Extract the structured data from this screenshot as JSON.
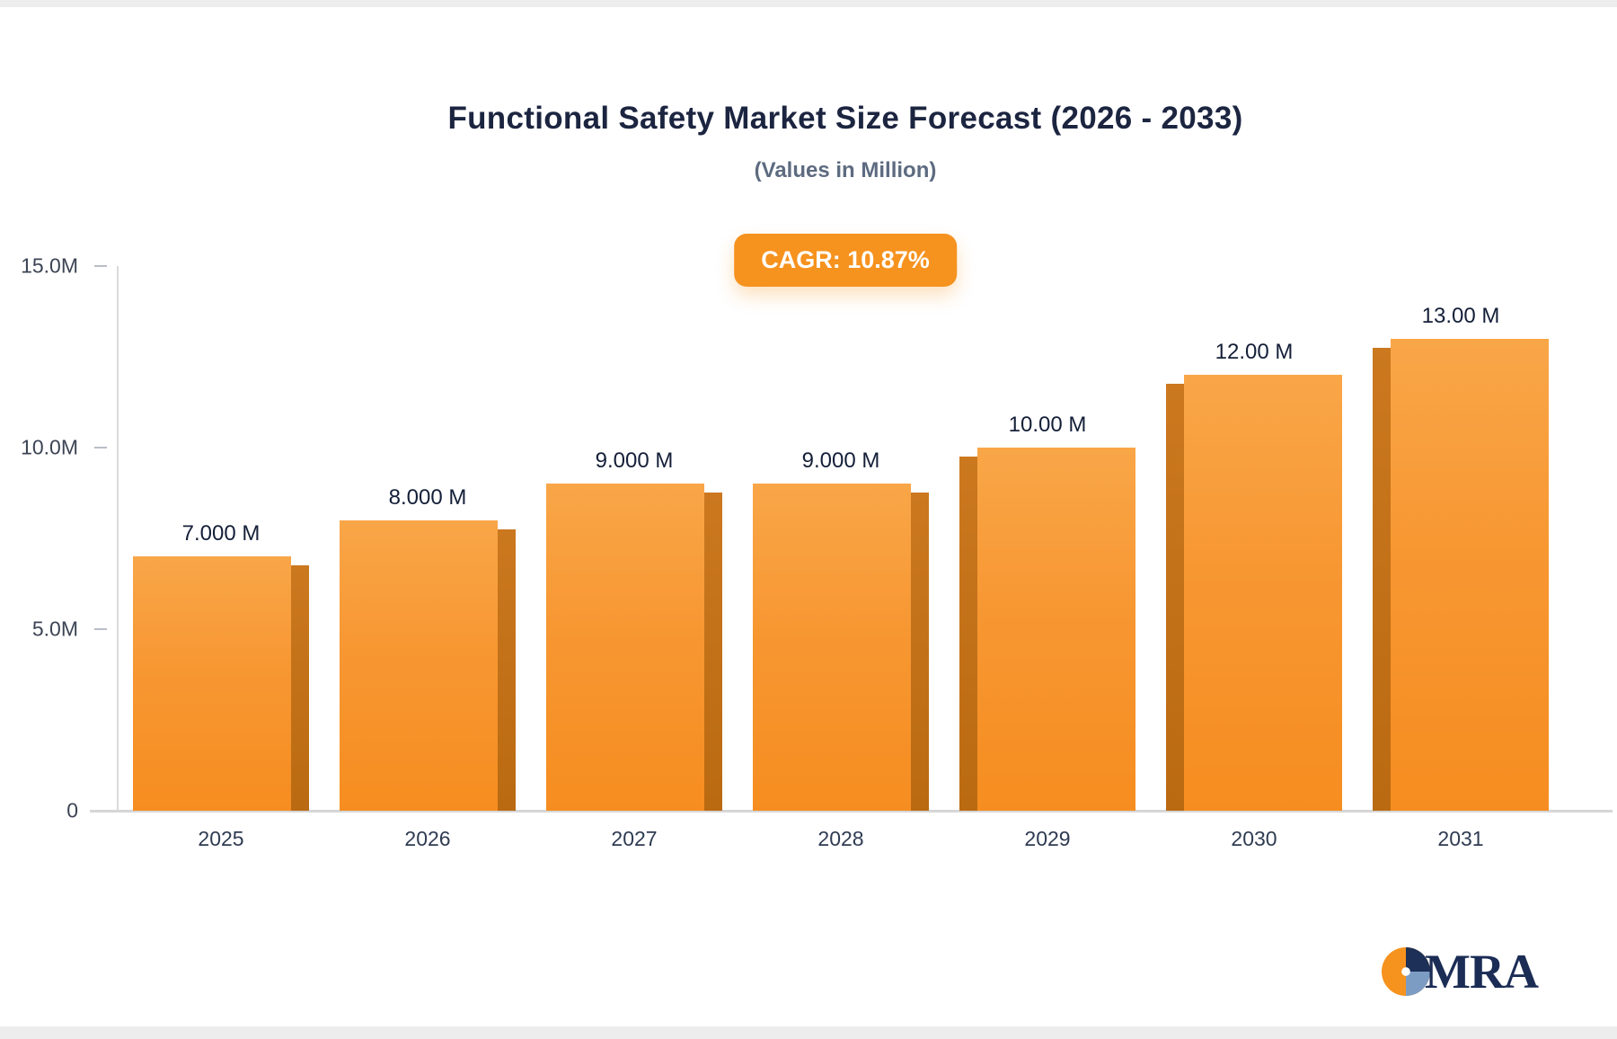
{
  "chart_data": {
    "type": "bar",
    "title": "Functional Safety Market Size Forecast (2026 - 2033)",
    "subtitle": "(Values in Million)",
    "badge": "CAGR: 10.87%",
    "categories": [
      "2025",
      "2026",
      "2027",
      "2028",
      "2029",
      "2030",
      "2031"
    ],
    "values": [
      7,
      8,
      9,
      9,
      10,
      12,
      13
    ],
    "value_labels": [
      "7.000 M",
      "8.000 M",
      "9.000 M",
      "9.000 M",
      "10.00 M",
      "12.00 M",
      "13.00 M"
    ],
    "ylim": [
      0,
      15
    ],
    "yticks": [
      15,
      10,
      5,
      0
    ],
    "ytick_labels": [
      "15.0M",
      "10.0M",
      "5.0M",
      "0"
    ],
    "xlabel": "",
    "ylabel": "",
    "grid": false,
    "legend": "none",
    "colors": {
      "bar_top": "#f9a648",
      "bar_bottom": "#f68d20",
      "bar_side_3d": "#ba6a11",
      "badge_bg": "#f6921e",
      "badge_text": "#ffffff",
      "title_text": "#1c2540",
      "subtitle_text": "#5d6b80",
      "axis_line": "#d6d6d6",
      "tick_text": "#3c4454"
    }
  },
  "logo": {
    "text": "MRA",
    "icon": "pie-globe-icon",
    "icon_colors": [
      "#f6921e",
      "#1d3057",
      "#7c9cc4"
    ]
  }
}
